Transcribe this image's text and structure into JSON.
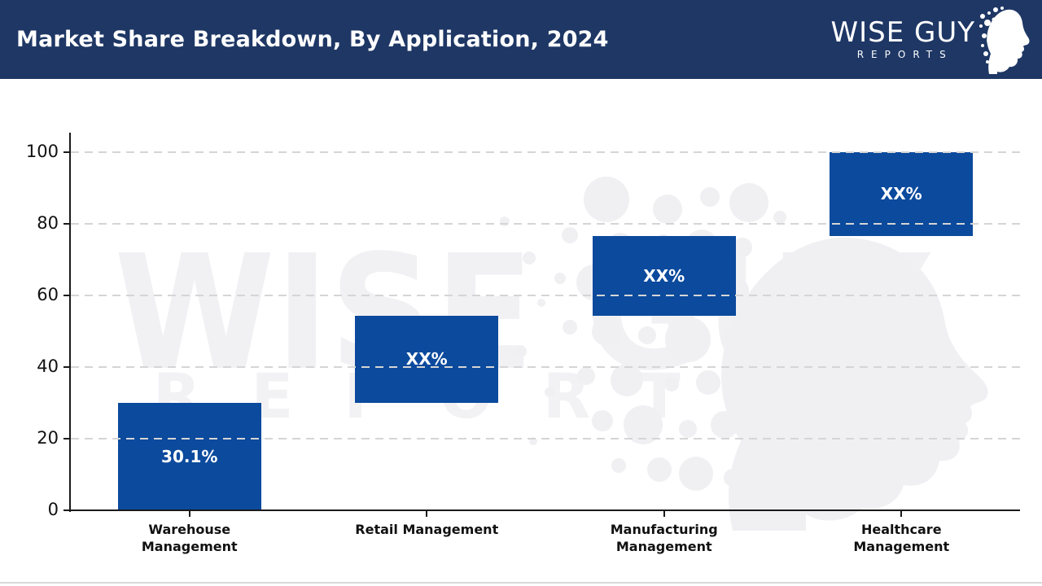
{
  "header": {
    "title": "Market Share Breakdown, By Application, 2024"
  },
  "logo": {
    "brand": "WISE GUY",
    "sub": "REPORTS"
  },
  "watermark": {
    "brand": "WISE GUY",
    "sub": "REPORTS"
  },
  "chart_data": {
    "type": "bar",
    "subtype": "waterfall",
    "title": "Market Share Breakdown, By Application, 2024",
    "categories": [
      "Warehouse Management",
      "Retail Management",
      "Manufacturing Management",
      "Healthcare Management"
    ],
    "categories_display": [
      "Warehouse\nManagement",
      "Retail Management",
      "Manufacturing\nManagement",
      "Healthcare\nManagement"
    ],
    "segments": [
      {
        "category": "Warehouse Management",
        "start": 0,
        "end": 30.1,
        "label": "30.1%"
      },
      {
        "category": "Retail Management",
        "start": 30.1,
        "end": 54.3,
        "label": "XX%"
      },
      {
        "category": "Manufacturing Management",
        "start": 54.3,
        "end": 76.6,
        "label": "XX%"
      },
      {
        "category": "Healthcare Management",
        "start": 76.6,
        "end": 100,
        "label": "XX%"
      }
    ],
    "ylim": [
      0,
      100
    ],
    "yticks": [
      0,
      20,
      40,
      60,
      80,
      100
    ],
    "xlabel": "",
    "ylabel": "",
    "grid": "horizontal-dashed",
    "legend": "none",
    "bar_color": "#0b4a9d",
    "bar_label_color": "#ffffff"
  }
}
